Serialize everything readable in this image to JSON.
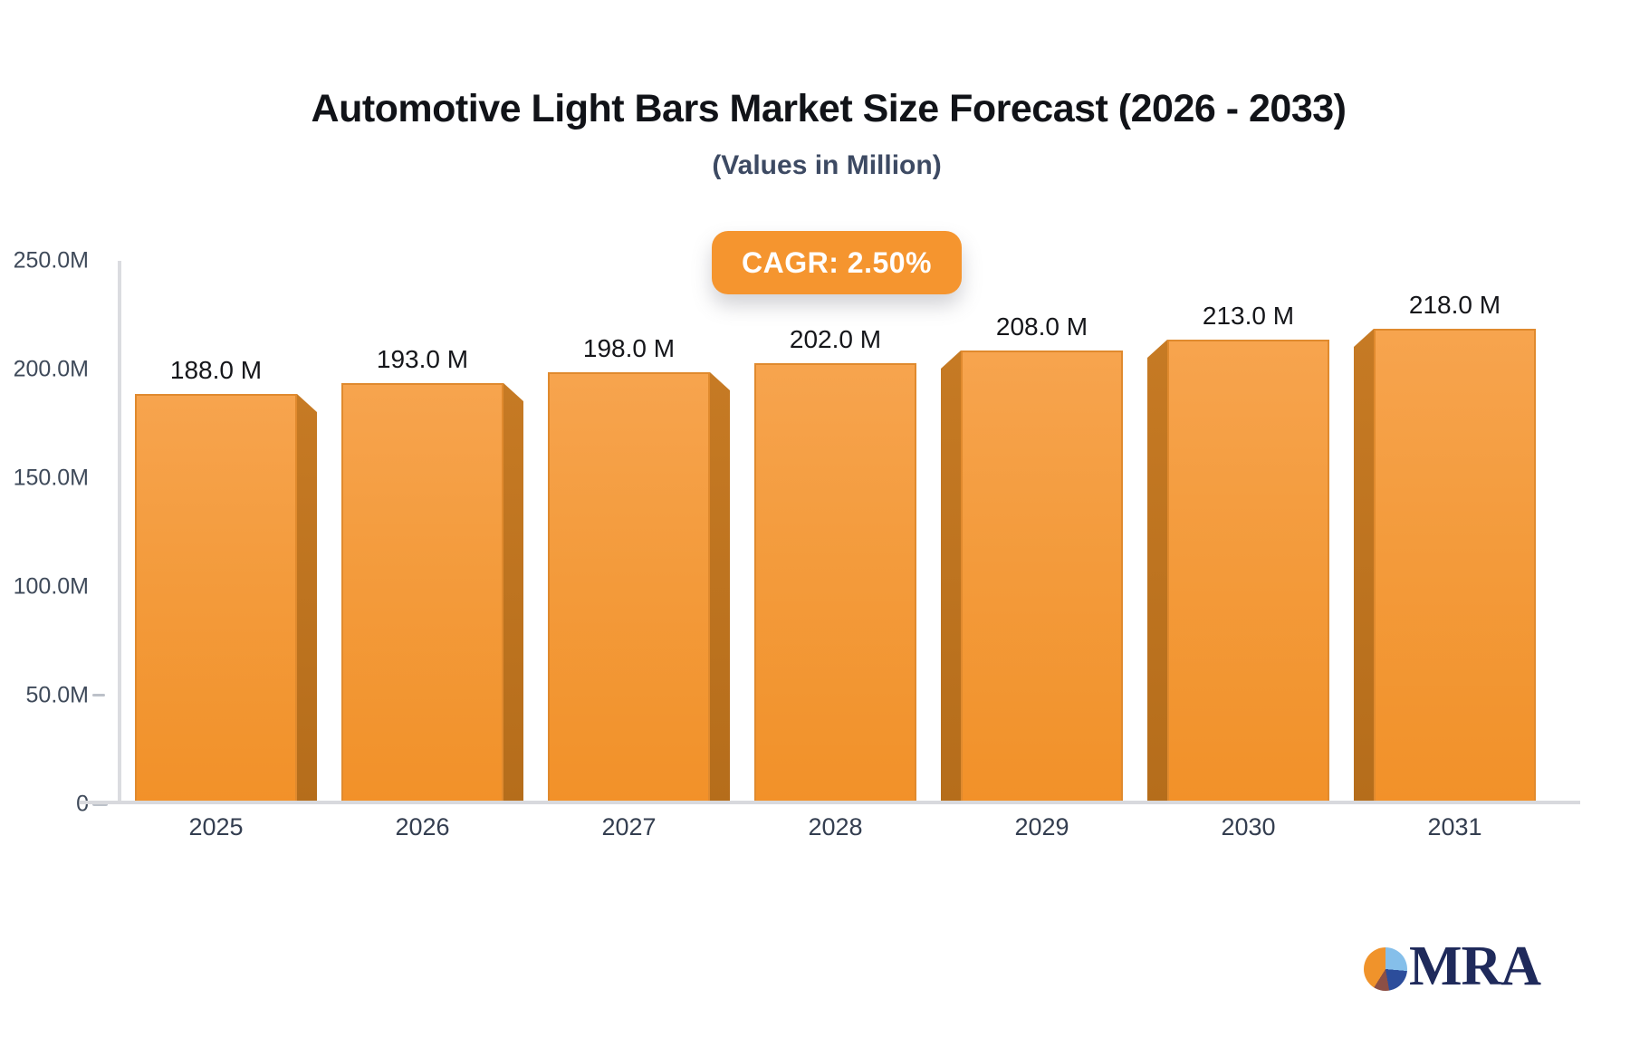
{
  "chart_data": {
    "type": "bar",
    "title": "Automotive Light Bars Market Size Forecast (2026 - 2033)",
    "subtitle": "(Values in Million)",
    "cagr_label": "CAGR: 2.50%",
    "categories": [
      "2025",
      "2026",
      "2027",
      "2028",
      "2029",
      "2030",
      "2031"
    ],
    "values": [
      188,
      193,
      198,
      202,
      208,
      213,
      218
    ],
    "value_labels": [
      "188.0 M",
      "193.0 M",
      "198.0 M",
      "202.0 M",
      "208.0 M",
      "213.0 M",
      "218.0 M"
    ],
    "ylabel": "",
    "xlabel": "",
    "ylim": [
      0,
      250
    ],
    "y_ticks": [
      {
        "label": "250.0M",
        "value": 250
      },
      {
        "label": "200.0M",
        "value": 200
      },
      {
        "label": "150.0M",
        "value": 150
      },
      {
        "label": "100.0M",
        "value": 100
      },
      {
        "label": "50.0M",
        "value": 50
      },
      {
        "label": "0",
        "value": 0
      }
    ],
    "grid": false,
    "legend_position": "none",
    "bar_color": "#F49A3C",
    "bar_side_color": "#BE741F",
    "accent_color": "#F5952F"
  },
  "logo": {
    "text": "MRA",
    "pie_colors": [
      "#F0932B",
      "#85BFEA",
      "#2C4D9B",
      "#8C4F45"
    ]
  }
}
